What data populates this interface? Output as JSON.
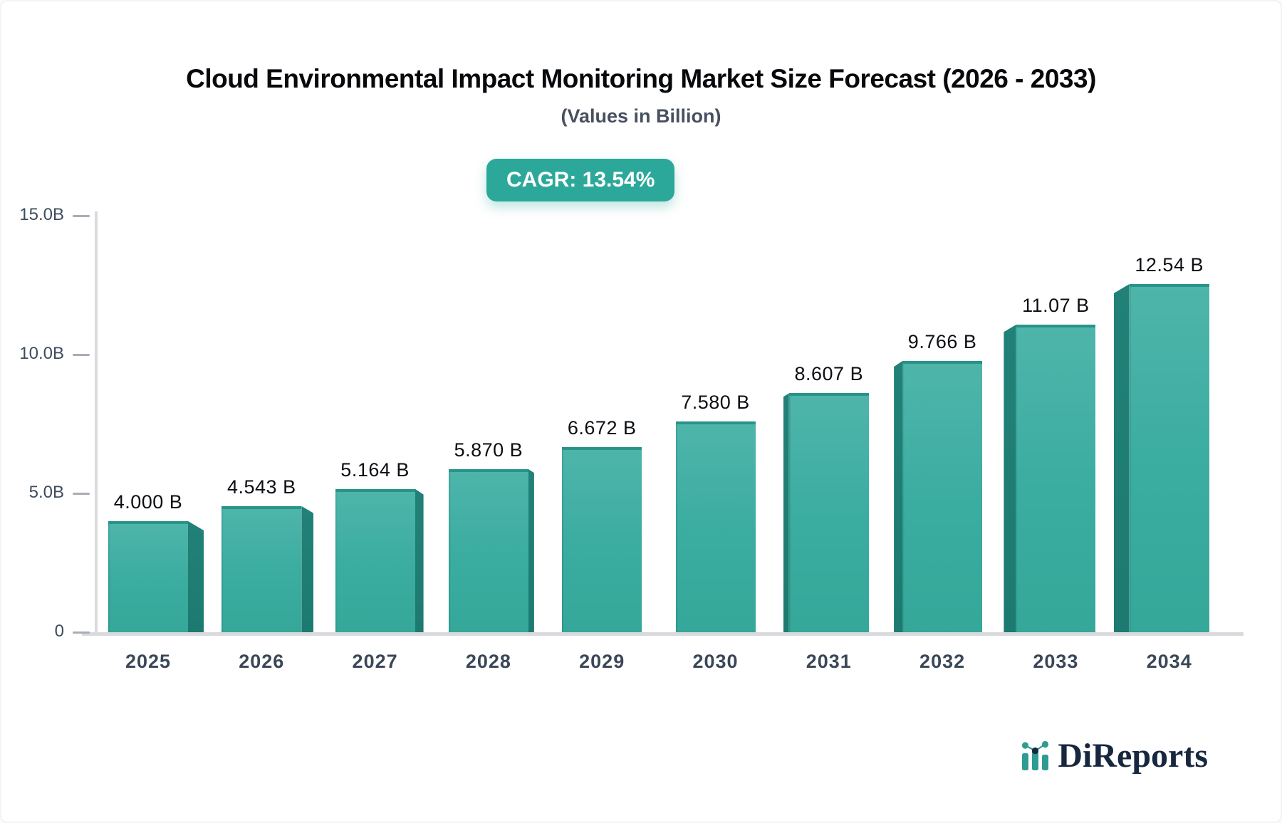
{
  "page": {
    "title": "Cloud Environmental Impact Monitoring Market Size Forecast (2026 - 2033)",
    "subtitle": "(Values in Billion)",
    "badge_label": "CAGR: 13.54%"
  },
  "chart_data": {
    "type": "bar",
    "title": "Cloud Environmental Impact Monitoring Market Size Forecast (2026 - 2033)",
    "subtitle": "(Values in Billion)",
    "cagr_percent": 13.54,
    "categories": [
      "2025",
      "2026",
      "2027",
      "2028",
      "2029",
      "2030",
      "2031",
      "2032",
      "2033",
      "2034"
    ],
    "values": [
      4.0,
      4.543,
      5.164,
      5.87,
      6.672,
      7.58,
      8.607,
      9.766,
      11.07,
      12.54
    ],
    "value_labels": [
      "4.000 B",
      "4.543 B",
      "5.164 B",
      "5.870 B",
      "6.672 B",
      "7.580 B",
      "8.607 B",
      "9.766 B",
      "11.07 B",
      "12.54 B"
    ],
    "xlabel": "",
    "ylabel": "",
    "ylim": [
      0,
      15
    ],
    "yticks": [
      {
        "value": 15,
        "label": "15.0B"
      },
      {
        "value": 10,
        "label": "10.0B"
      },
      {
        "value": 5,
        "label": "5.0B"
      },
      {
        "value": 0,
        "label": "0"
      }
    ],
    "grid": false,
    "legend": false,
    "bar_style": "pseudo-3d, perspective vanishing toward center"
  },
  "colors": {
    "bar_face_top": "#4fb5ab",
    "bar_face_bottom": "#35a89a",
    "bar_top_strip": "#27948a",
    "bar_side": "#1d7a70",
    "badge_bg": "#2ca89b",
    "badge_text": "#ffffff",
    "axis_line": "#d8dade",
    "tick_dash": "#a7adb5",
    "y_label": "#3e4c5e",
    "x_label": "#3a4758",
    "value_label": "#0b0e13",
    "title": "#07090c",
    "subtitle": "#47505f",
    "logo_navy": "#16273e",
    "logo_teal": "#2e9c92"
  },
  "logo": {
    "text": "DiReports",
    "icon": "mini-bar-chart-with-trendline-icon"
  }
}
